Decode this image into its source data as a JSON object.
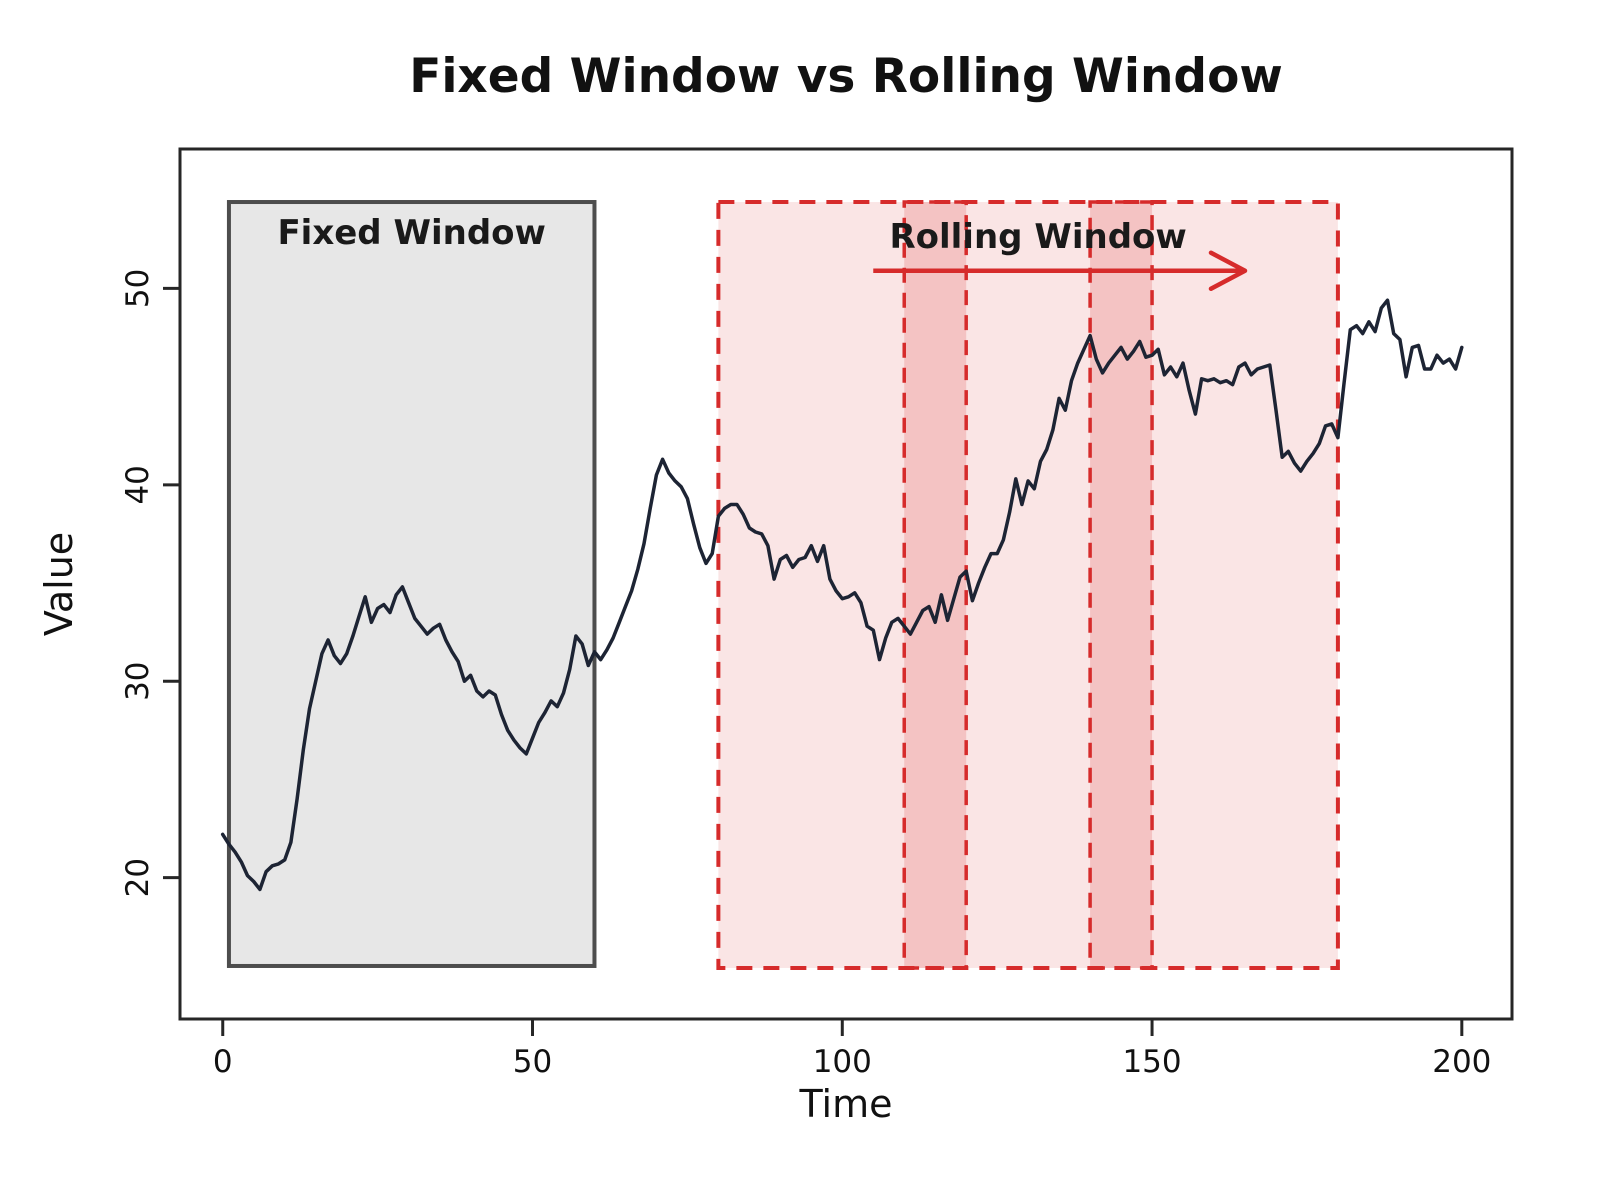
{
  "chart_data": {
    "type": "line",
    "title": "Fixed Window vs Rolling Window",
    "xlabel": "Time",
    "ylabel": "Value",
    "x_ticks": [
      0,
      50,
      100,
      150,
      200
    ],
    "y_ticks": [
      20,
      30,
      40,
      50
    ],
    "xlim": [
      -6.9,
      208.1
    ],
    "ylim": [
      12.8,
      57.1
    ],
    "grid": false,
    "legend": "none",
    "line_color": "#1d2434",
    "x_start": 0,
    "x_step": 1,
    "series": [
      {
        "name": "Value",
        "values": [
          22.2,
          21.7,
          21.3,
          20.8,
          20.1,
          19.8,
          19.4,
          20.3,
          20.6,
          20.7,
          20.9,
          21.8,
          24.0,
          26.5,
          28.6,
          30.0,
          31.4,
          32.1,
          31.3,
          30.9,
          31.4,
          32.3,
          33.3,
          34.3,
          33.0,
          33.7,
          33.9,
          33.5,
          34.4,
          34.8,
          34.0,
          33.2,
          32.8,
          32.4,
          32.7,
          32.9,
          32.1,
          31.5,
          31.0,
          30.0,
          30.3,
          29.5,
          29.2,
          29.5,
          29.3,
          28.3,
          27.5,
          27.0,
          26.6,
          26.3,
          27.1,
          27.9,
          28.4,
          29.0,
          28.7,
          29.4,
          30.6,
          32.3,
          31.9,
          30.8,
          31.5,
          31.1,
          31.6,
          32.2,
          33.0,
          33.8,
          34.6,
          35.7,
          37.0,
          38.8,
          40.5,
          41.3,
          40.6,
          40.2,
          39.9,
          39.3,
          38.0,
          36.8,
          36.0,
          36.5,
          38.4,
          38.8,
          39.0,
          39.0,
          38.5,
          37.8,
          37.6,
          37.5,
          36.9,
          35.2,
          36.2,
          36.4,
          35.8,
          36.2,
          36.3,
          36.9,
          36.1,
          36.9,
          35.2,
          34.6,
          34.2,
          34.3,
          34.5,
          34.0,
          32.8,
          32.6,
          31.1,
          32.2,
          33.0,
          33.2,
          32.8,
          32.4,
          33.0,
          33.6,
          33.8,
          33.0,
          34.4,
          33.1,
          34.2,
          35.3,
          35.6,
          34.1,
          35.0,
          35.8,
          36.5,
          36.5,
          37.2,
          38.6,
          40.3,
          39.0,
          40.2,
          39.8,
          41.2,
          41.8,
          42.8,
          44.4,
          43.8,
          45.3,
          46.2,
          46.9,
          47.6,
          46.4,
          45.7,
          46.2,
          46.6,
          47.0,
          46.4,
          46.8,
          47.3,
          46.5,
          46.6,
          46.9,
          45.6,
          46.0,
          45.5,
          46.2,
          44.8,
          43.6,
          45.4,
          45.3,
          45.4,
          45.2,
          45.3,
          45.1,
          46.0,
          46.2,
          45.6,
          45.9,
          46.0,
          46.1,
          43.8,
          41.4,
          41.7,
          41.1,
          40.7,
          41.2,
          41.6,
          42.1,
          43.0,
          43.1,
          42.4,
          45.2,
          47.9,
          48.1,
          47.7,
          48.3,
          47.8,
          49.0,
          49.4,
          47.7,
          47.4,
          45.5,
          47.0,
          47.1,
          45.9,
          45.9,
          46.6,
          46.2,
          46.4,
          45.9,
          47.0
        ]
      }
    ],
    "fixed_window": {
      "label": "Fixed Window",
      "x_start": 1,
      "x_end": 60,
      "y_bottom": 15.5,
      "y_top": 54.4,
      "fill": "#e7e7e7",
      "border_color": "#4d4d4d",
      "label_color": "#3d3d3d"
    },
    "rolling_window": {
      "label": "Rolling Window",
      "x_start": 80,
      "x_end": 180,
      "y_bottom": 15.4,
      "y_top": 54.4,
      "sub_windows": [
        {
          "x_start": 110,
          "x_end": 120
        },
        {
          "x_start": 140,
          "x_end": 150
        }
      ],
      "color": "#d62b2b",
      "fill_opacity": 0.12,
      "sub_fill_opacity": 0.18
    },
    "arrow": {
      "x_start": 105,
      "x_end": 165,
      "y": 50.9
    }
  }
}
